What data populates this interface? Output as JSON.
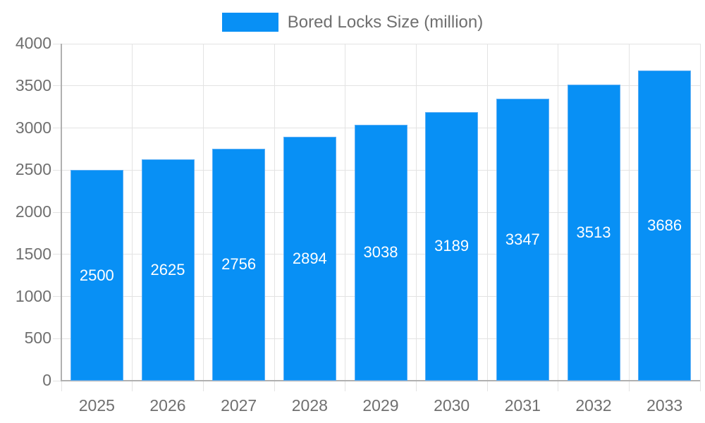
{
  "chart_data": {
    "type": "bar",
    "title": "Bored Locks Size (million)",
    "categories": [
      "2025",
      "2026",
      "2027",
      "2028",
      "2029",
      "2030",
      "2031",
      "2032",
      "2033"
    ],
    "values": [
      2500,
      2625,
      2756,
      2894,
      3038,
      3189,
      3347,
      3513,
      3686
    ],
    "series": [
      {
        "name": "Bored Locks Size (million)",
        "values": [
          2500,
          2625,
          2756,
          2894,
          3038,
          3189,
          3347,
          3513,
          3686
        ]
      }
    ],
    "xlabel": "",
    "ylabel": "",
    "ylim": [
      0,
      4000
    ],
    "yticks": [
      0,
      500,
      1000,
      1500,
      2000,
      2500,
      3000,
      3500,
      4000
    ],
    "grid": true,
    "legend_position": "top",
    "value_labels": "inside-center",
    "colors": {
      "bar_fill": "#0890f5",
      "bar_border": "#5caef5",
      "value_label": "#ffffff",
      "axis_text": "#6f6f6f",
      "grid_line": "#e3e3e3",
      "axis_line": "#b0b0b0",
      "background": "#ffffff"
    }
  }
}
